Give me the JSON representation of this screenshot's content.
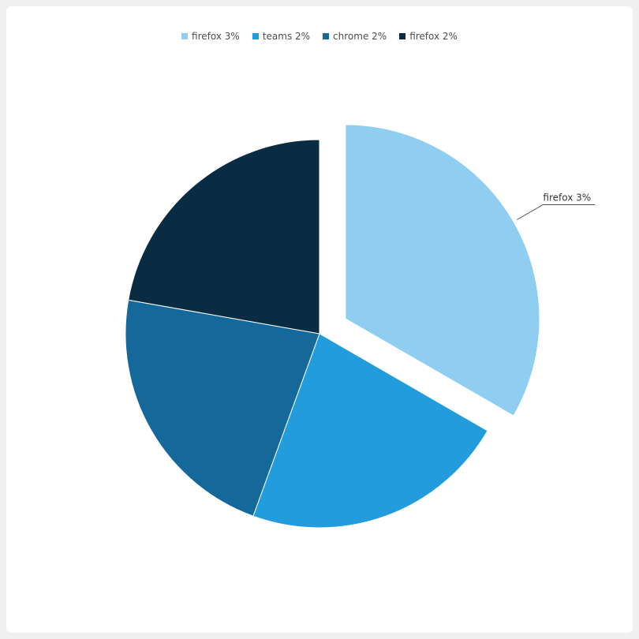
{
  "page": {
    "background_color": "#f0f0f0",
    "card_background_color": "#ffffff"
  },
  "chart_data": {
    "type": "pie",
    "legend_position": "top",
    "direction": "clockwise",
    "start_angle": "12-oclock",
    "total": 9,
    "series": [
      {
        "name": "firefox",
        "value": 3,
        "legend_label": "firefox 3%",
        "color": "#8fcdf1",
        "exploded": true
      },
      {
        "name": "teams",
        "value": 2,
        "legend_label": "teams 2%",
        "color": "#229cdc",
        "exploded": false
      },
      {
        "name": "chrome",
        "value": 2,
        "legend_label": "chrome 2%",
        "color": "#15699a",
        "exploded": false
      },
      {
        "name": "firefox",
        "value": 2,
        "legend_label": "firefox 2%",
        "color": "#0a2c42",
        "exploded": false
      }
    ],
    "annotation": {
      "text": "firefox 3%",
      "target_slice_index": 0
    },
    "slice_border_color": "#ffffff",
    "leader_line_color": "#4d4d4d",
    "legend_text_color": "#4d4d4d"
  }
}
